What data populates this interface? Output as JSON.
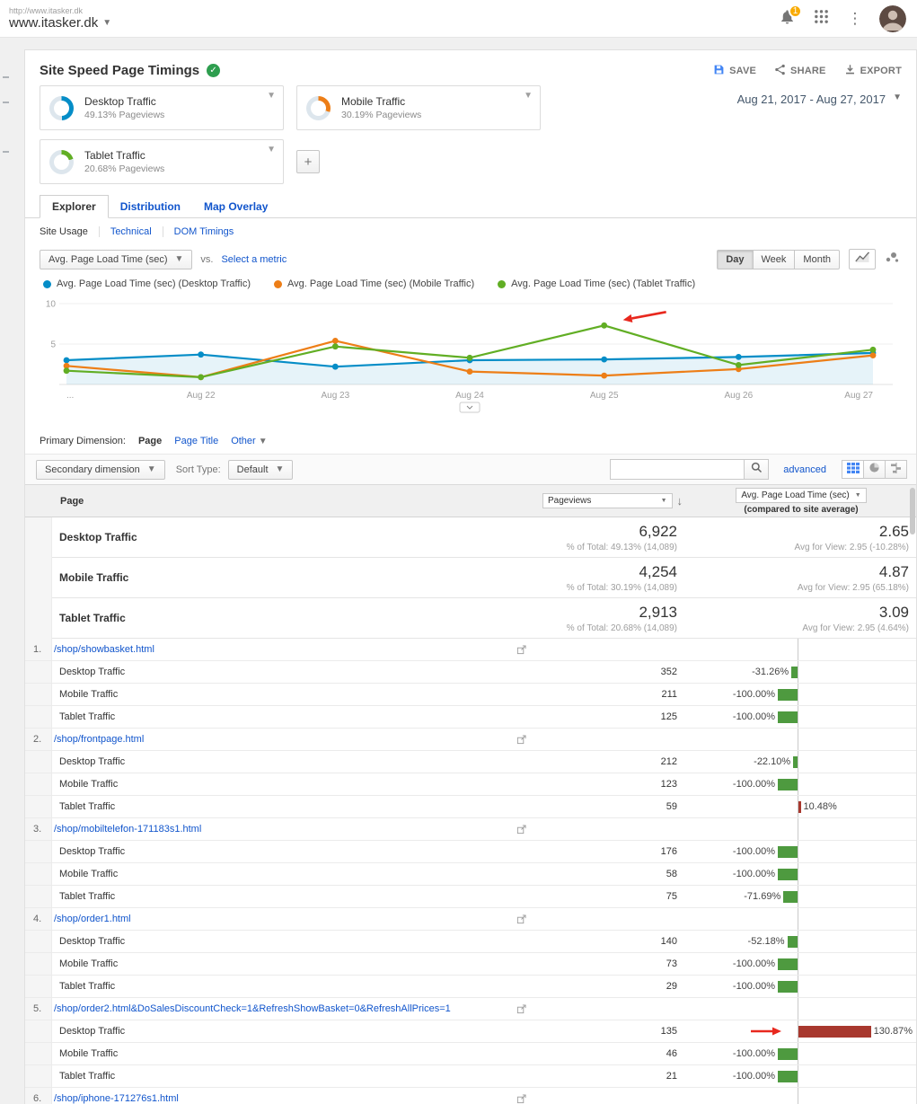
{
  "topbar": {
    "url": "http://www.itasker.dk",
    "account_name": "www.itasker.dk",
    "notification_count": "1"
  },
  "header": {
    "title": "Site Speed Page Timings",
    "save": "SAVE",
    "share": "SHARE",
    "export": "EXPORT"
  },
  "date_range": "Aug 21, 2017 - Aug 27, 2017",
  "add_segment": "+",
  "segments": [
    {
      "name": "Desktop Traffic",
      "detail": "49.13% Pageviews",
      "color": "#058dc7",
      "pct": 49.13
    },
    {
      "name": "Mobile Traffic",
      "detail": "30.19% Pageviews",
      "color": "#ed7e17",
      "pct": 30.19
    },
    {
      "name": "Tablet Traffic",
      "detail": "20.68% Pageviews",
      "color": "#61ae24",
      "pct": 20.68
    }
  ],
  "tabs": [
    {
      "label": "Explorer",
      "active": true
    },
    {
      "label": "Distribution",
      "active": false
    },
    {
      "label": "Map Overlay",
      "active": false
    }
  ],
  "subtabs": [
    {
      "label": "Site Usage",
      "active": true
    },
    {
      "label": "Technical",
      "active": false
    },
    {
      "label": "DOM Timings",
      "active": false
    }
  ],
  "metric_bar": {
    "metric_select": "Avg. Page Load Time (sec)",
    "vs_label": "vs.",
    "select_metric": "Select a metric",
    "granularity": [
      "Day",
      "Week",
      "Month"
    ]
  },
  "chart_data": {
    "type": "line",
    "categories": [
      "...",
      "Aug 22",
      "Aug 23",
      "Aug 24",
      "Aug 25",
      "Aug 26",
      "Aug 27"
    ],
    "ylim": [
      0,
      10
    ],
    "yticks": [
      5,
      10
    ],
    "series": [
      {
        "name": "Avg. Page Load Time (sec) (Desktop Traffic)",
        "color": "#058dc7",
        "area": true,
        "values": [
          3.0,
          3.7,
          2.2,
          3.0,
          3.1,
          3.4,
          3.9
        ]
      },
      {
        "name": "Avg. Page Load Time (sec) (Mobile Traffic)",
        "color": "#ed7e17",
        "area": false,
        "values": [
          2.3,
          0.9,
          5.4,
          1.6,
          1.1,
          1.9,
          3.6
        ]
      },
      {
        "name": "Avg. Page Load Time (sec) (Tablet Traffic)",
        "color": "#61ae24",
        "area": false,
        "values": [
          1.7,
          0.9,
          4.7,
          3.3,
          7.3,
          2.4,
          4.3
        ]
      }
    ],
    "annotation": {
      "type": "arrow",
      "color": "#e8281e",
      "series": 2,
      "index": 4
    }
  },
  "dimension_bar": {
    "label": "Primary Dimension:",
    "items": [
      {
        "label": "Page",
        "active": true
      },
      {
        "label": "Page Title",
        "active": false
      },
      {
        "label": "Other",
        "active": false
      }
    ]
  },
  "toolbar": {
    "secondary_dimension": "Secondary dimension",
    "sort_label": "Sort Type:",
    "sort_value": "Default",
    "search_value": "",
    "advanced": "advanced"
  },
  "table": {
    "columns": {
      "page": "Page",
      "pageviews": "Pageviews",
      "metric": "Avg. Page Load Time (sec)",
      "metric_sub": "(compared to site average)"
    },
    "summary_rows": [
      {
        "name": "Desktop Traffic",
        "pageviews": "6,922",
        "pageviews_sub": "% of Total: 49.13% (14,089)",
        "metric": "2.65",
        "metric_sub": "Avg for View: 2.95 (-10.28%)"
      },
      {
        "name": "Mobile Traffic",
        "pageviews": "4,254",
        "pageviews_sub": "% of Total: 30.19% (14,089)",
        "metric": "4.87",
        "metric_sub": "Avg for View: 2.95 (65.18%)"
      },
      {
        "name": "Tablet Traffic",
        "pageviews": "2,913",
        "pageviews_sub": "% of Total: 20.68% (14,089)",
        "metric": "3.09",
        "metric_sub": "Avg for View: 2.95 (4.64%)"
      }
    ],
    "rows": [
      {
        "num": "1.",
        "page": "/shop/showbasket.html",
        "entries": [
          {
            "name": "Desktop Traffic",
            "pageviews": "352",
            "pct_label": "-31.26%",
            "pct": -31.26
          },
          {
            "name": "Mobile Traffic",
            "pageviews": "211",
            "pct_label": "-100.00%",
            "pct": -100
          },
          {
            "name": "Tablet Traffic",
            "pageviews": "125",
            "pct_label": "-100.00%",
            "pct": -100
          }
        ]
      },
      {
        "num": "2.",
        "page": "/shop/frontpage.html",
        "entries": [
          {
            "name": "Desktop Traffic",
            "pageviews": "212",
            "pct_label": "-22.10%",
            "pct": -22.1
          },
          {
            "name": "Mobile Traffic",
            "pageviews": "123",
            "pct_label": "-100.00%",
            "pct": -100
          },
          {
            "name": "Tablet Traffic",
            "pageviews": "59",
            "pct_label": "10.48%",
            "pct": 10.48
          }
        ]
      },
      {
        "num": "3.",
        "page": "/shop/mobiltelefon-171183s1.html",
        "entries": [
          {
            "name": "Desktop Traffic",
            "pageviews": "176",
            "pct_label": "-100.00%",
            "pct": -100
          },
          {
            "name": "Mobile Traffic",
            "pageviews": "58",
            "pct_label": "-100.00%",
            "pct": -100
          },
          {
            "name": "Tablet Traffic",
            "pageviews": "75",
            "pct_label": "-71.69%",
            "pct": -71.69
          }
        ]
      },
      {
        "num": "4.",
        "page": "/shop/order1.html",
        "entries": [
          {
            "name": "Desktop Traffic",
            "pageviews": "140",
            "pct_label": "-52.18%",
            "pct": -52.18
          },
          {
            "name": "Mobile Traffic",
            "pageviews": "73",
            "pct_label": "-100.00%",
            "pct": -100
          },
          {
            "name": "Tablet Traffic",
            "pageviews": "29",
            "pct_label": "-100.00%",
            "pct": -100
          }
        ]
      },
      {
        "num": "5.",
        "page": "/shop/order2.html&DoSalesDiscountCheck=1&RefreshShowBasket=0&RefreshAllPrices=1",
        "entries": [
          {
            "name": "Desktop Traffic",
            "pageviews": "135",
            "pct_label": "130.87%",
            "pct": 130.87,
            "arrow": true
          },
          {
            "name": "Mobile Traffic",
            "pageviews": "46",
            "pct_label": "-100.00%",
            "pct": -100
          },
          {
            "name": "Tablet Traffic",
            "pageviews": "21",
            "pct_label": "-100.00%",
            "pct": -100
          }
        ]
      },
      {
        "num": "6.",
        "page": "/shop/iphone-171276s1.html",
        "entries": []
      }
    ]
  },
  "colors": {
    "negative_bar": "#4e9a3f",
    "positive_bar": "#a8382e",
    "annotation_arrow": "#e8281e",
    "link": "#1155cc"
  }
}
